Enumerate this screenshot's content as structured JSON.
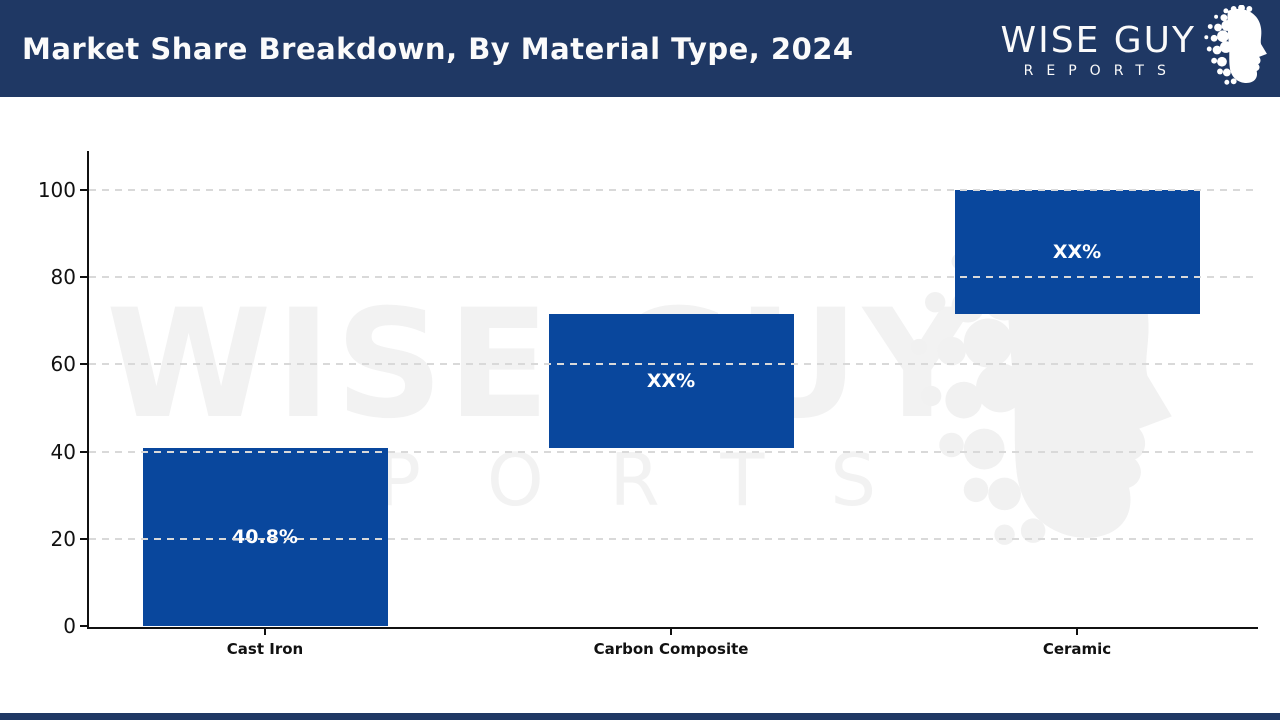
{
  "header": {
    "title": "Market Share Breakdown, By Material Type, 2024",
    "logo": {
      "line1": "WISE GUY",
      "line2": "REPORTS"
    }
  },
  "watermark": {
    "line1": "WISE GUY",
    "line2": "REPORTS"
  },
  "chart_data": {
    "type": "bar",
    "subtype": "waterfall",
    "title": "Market Share Breakdown, By Material Type, 2024",
    "categories": [
      "Cast Iron",
      "Carbon Composite",
      "Ceramic"
    ],
    "segments": [
      {
        "category": "Cast Iron",
        "start": 0,
        "end": 40.8,
        "label": "40.8%"
      },
      {
        "category": "Carbon Composite",
        "start": 40.8,
        "end": 71.6,
        "label": "XX%"
      },
      {
        "category": "Ceramic",
        "start": 71.6,
        "end": 100,
        "label": "XX%"
      }
    ],
    "y_ticks": [
      0,
      20,
      40,
      60,
      80,
      100
    ],
    "ylim": [
      0,
      108
    ],
    "grid": "horizontal-dashed",
    "legend": "none",
    "bar_color": "#09479d",
    "bar_label_color": "#ffffff",
    "header_color": "#1f3864",
    "gridline_color": "#d9d9d9"
  }
}
